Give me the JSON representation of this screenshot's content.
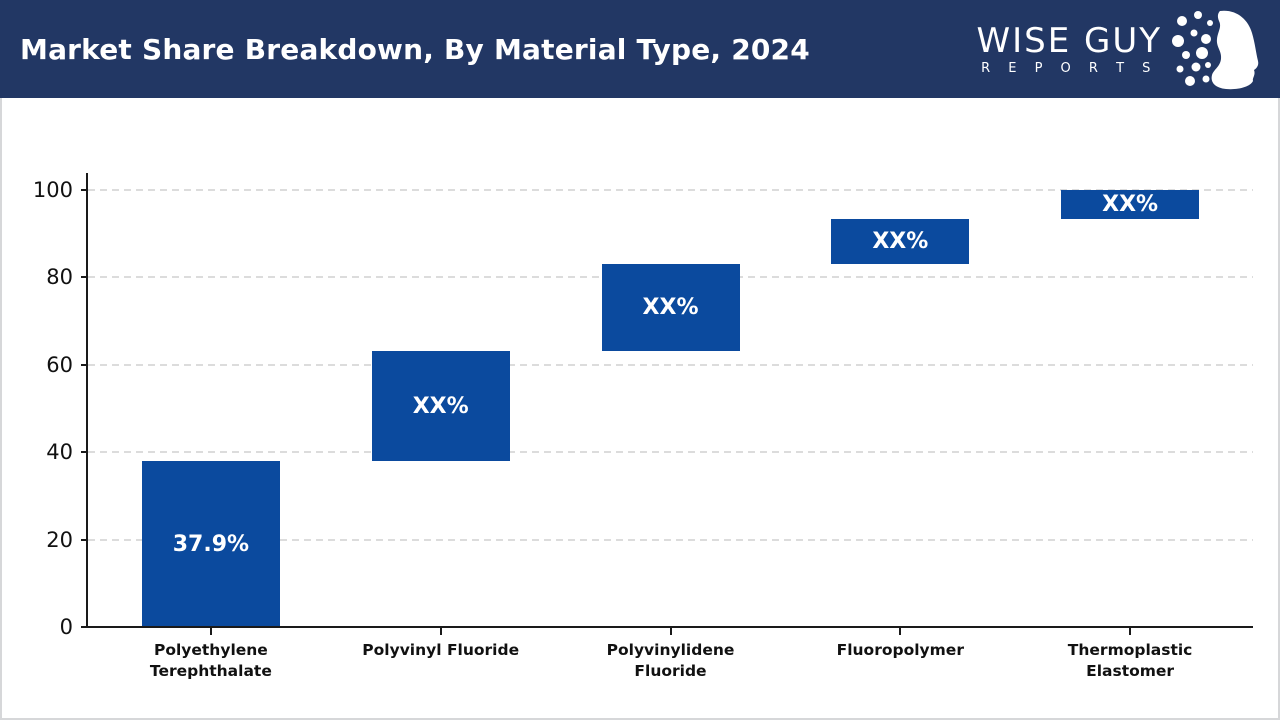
{
  "header": {
    "title": "Market Share Breakdown, By Material Type, 2024",
    "background_color": "#223764",
    "logo_line1": "WISE GUY",
    "logo_line2": "R E P O R T S"
  },
  "watermark": {
    "line1": "WISE GUY",
    "line2": "R E P O R T S",
    "color": "#f2f3f5"
  },
  "chart_data": {
    "type": "bar",
    "subtype": "waterfall",
    "title": "Market Share Breakdown, By Material Type, 2024",
    "categories": [
      "Polyethylene Terephthalate",
      "Polyvinyl Fluoride",
      "Polyvinylidene Fluoride",
      "Fluoropolymer",
      "Thermoplastic Elastomer"
    ],
    "category_label_lines": [
      [
        "Polyethylene",
        "Terephthalate"
      ],
      [
        "Polyvinyl Fluoride"
      ],
      [
        "Polyvinylidene",
        "Fluoride"
      ],
      [
        "Fluoropolymer"
      ],
      [
        "Thermoplastic",
        "Elastomer"
      ]
    ],
    "segments": [
      {
        "start": 0,
        "end": 37.9,
        "value_label": "37.9%"
      },
      {
        "start": 37.9,
        "end": 63.0,
        "value_label": "XX%"
      },
      {
        "start": 63.0,
        "end": 83.0,
        "value_label": "XX%"
      },
      {
        "start": 83.0,
        "end": 93.2,
        "value_label": "XX%"
      },
      {
        "start": 93.2,
        "end": 100.0,
        "value_label": "XX%"
      }
    ],
    "ylim": [
      0,
      100
    ],
    "yticks": [
      0,
      20,
      40,
      60,
      80,
      100
    ],
    "grid": "horizontal-dashed",
    "legend": "none",
    "bar_color": "#0b4a9e",
    "value_label_color": "#ffffff",
    "axis_color": "#1a1a1a",
    "gridline_color": "#dcdcdc"
  }
}
